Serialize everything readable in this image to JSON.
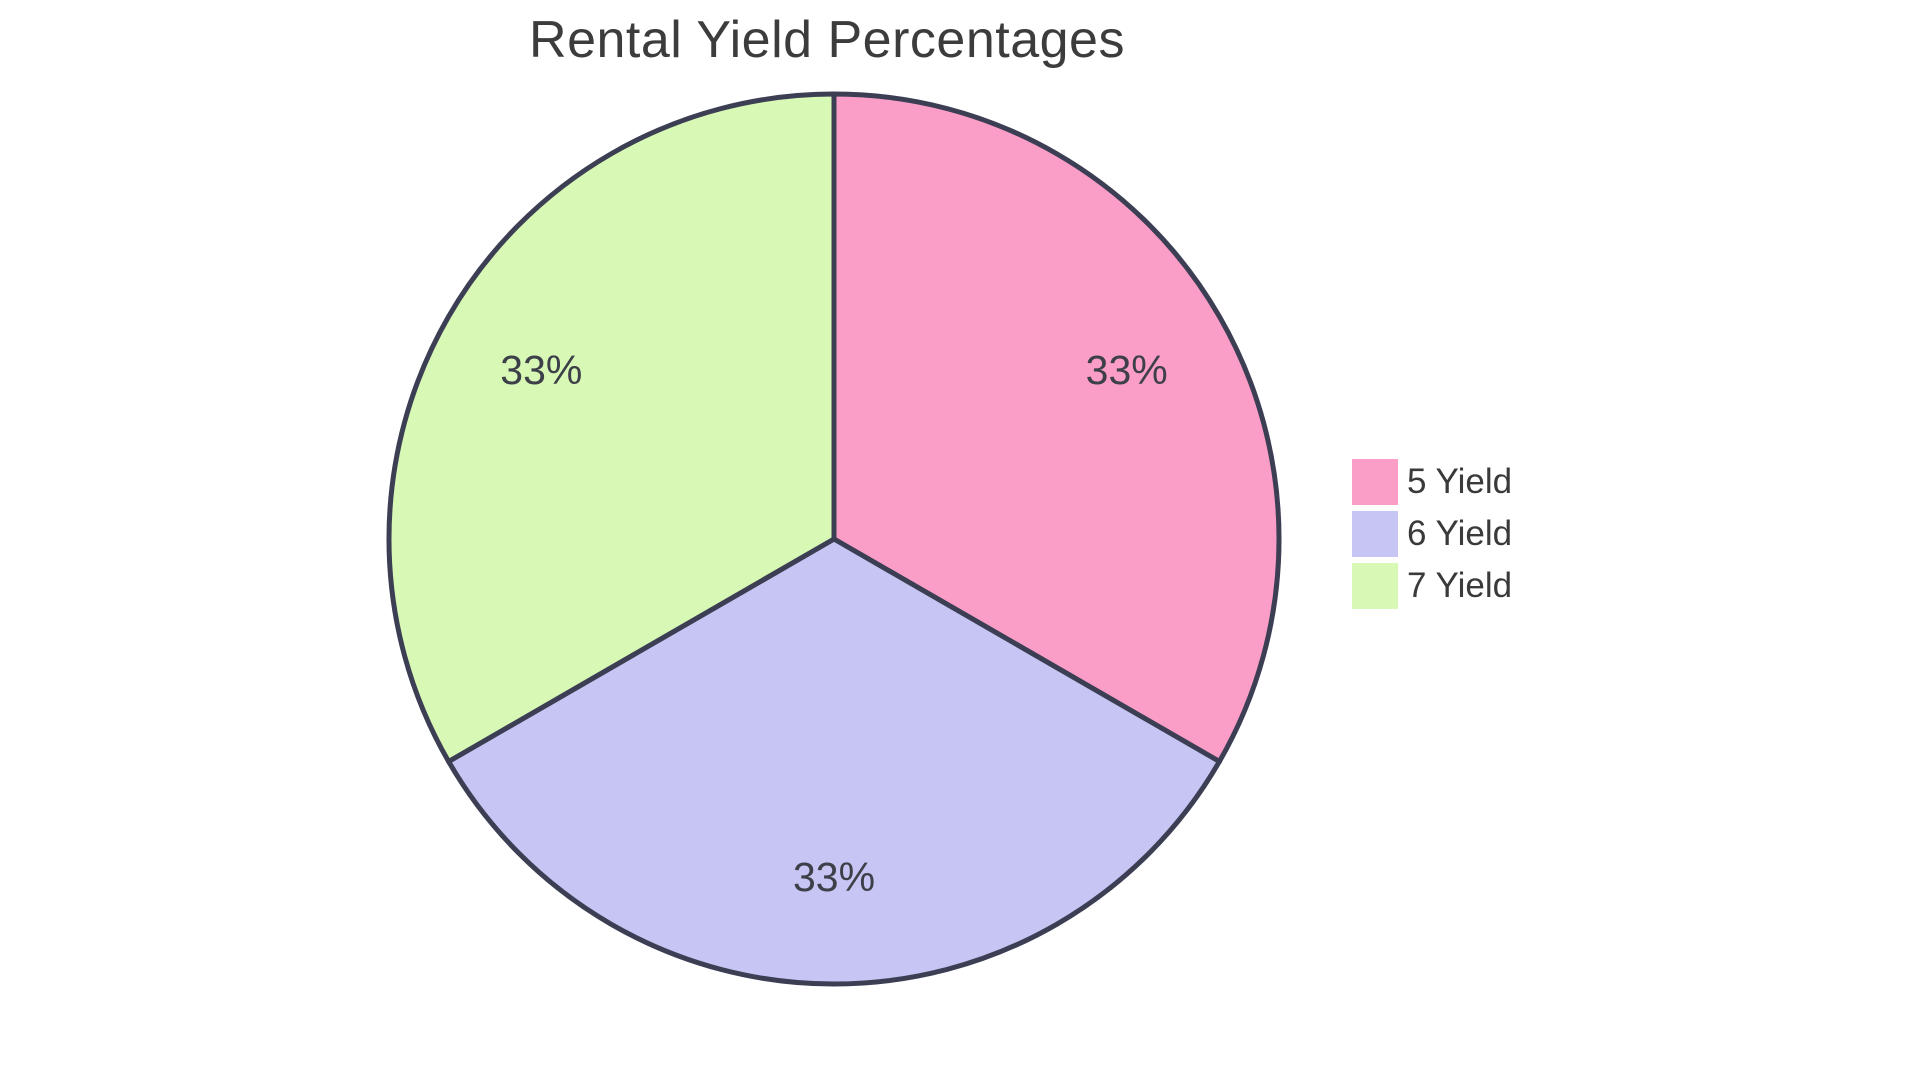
{
  "chart_data": {
    "type": "pie",
    "title": "Rental Yield Percentages",
    "categories": [
      "5 Yield",
      "6 Yield",
      "7 Yield"
    ],
    "values": [
      33.33,
      33.33,
      33.33
    ],
    "slice_labels": [
      "33%",
      "33%",
      "33%"
    ],
    "colors": [
      "#FA9EC8",
      "#C6C5F3",
      "#D8F8B6"
    ],
    "slice_border_color": "#3C3E54",
    "slice_label_color": "#3E4049",
    "title_color": "#3C3C3C",
    "background_color": "#FFFFFF",
    "legend_position": "right",
    "start_angle": "top",
    "direction": "clockwise",
    "grid": false
  },
  "legend": {
    "items": [
      {
        "label": "5 Yield",
        "color": "#FA9EC8"
      },
      {
        "label": "6 Yield",
        "color": "#C6C5F3"
      },
      {
        "label": "7 Yield",
        "color": "#D8F8B6"
      }
    ]
  }
}
